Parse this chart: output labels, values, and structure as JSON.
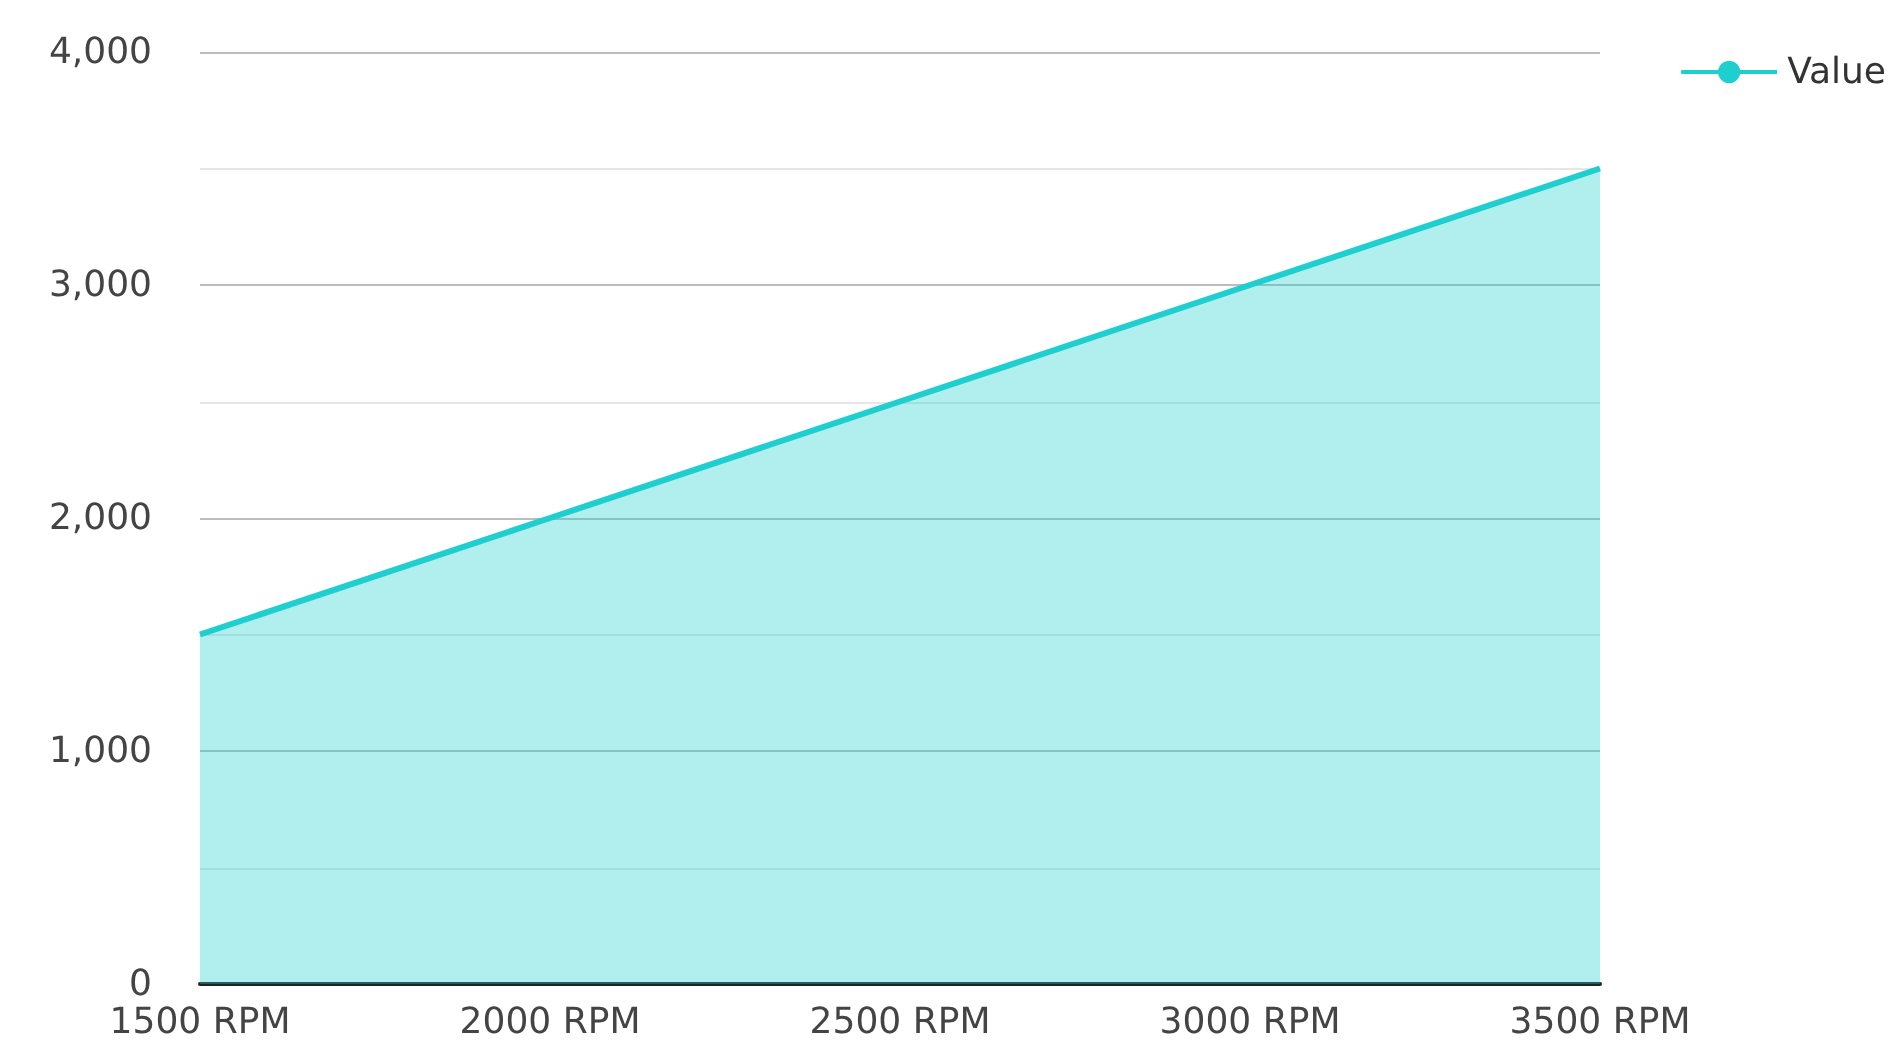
{
  "chart_data": {
    "type": "area",
    "categories": [
      "1500 RPM",
      "2000 RPM",
      "2500 RPM",
      "3000 RPM",
      "3500 RPM"
    ],
    "series": [
      {
        "name": "Value",
        "color": "#1fcfcf",
        "values": [
          1500,
          2000,
          2500,
          3000,
          3500
        ]
      }
    ],
    "ylim": [
      0,
      4000
    ],
    "yticks": [
      {
        "value": 0,
        "label": "0"
      },
      {
        "value": 500,
        "label": null
      },
      {
        "value": 1000,
        "label": "1,000"
      },
      {
        "value": 1500,
        "label": null
      },
      {
        "value": 2000,
        "label": "2,000"
      },
      {
        "value": 2500,
        "label": null
      },
      {
        "value": 3000,
        "label": "3,000"
      },
      {
        "value": 3500,
        "label": null
      },
      {
        "value": 4000,
        "label": "4,000"
      }
    ],
    "grid": "y",
    "legend": "top right",
    "marker": "none"
  }
}
